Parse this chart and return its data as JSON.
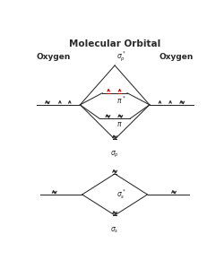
{
  "title": "Molecular Orbital",
  "title_fontsize": 7.5,
  "label_left": "Oxygen",
  "label_right": "Oxygen",
  "label_fontsize": 6.5,
  "bg_color": "#ffffff",
  "line_color": "#2a2a2a",
  "red_color": "#cc0000",
  "sigma_p_star": "$\\sigma_p^*$",
  "pi_star": "$\\pi^*$",
  "pi": "$\\pi$",
  "sigma_p": "$\\sigma_p$",
  "sigma_s_star": "$\\sigma_s^*$",
  "sigma_s": "$\\sigma_s$",
  "lw": 0.75,
  "arrow_scale": 4.5,
  "arrow_lw": 0.8
}
